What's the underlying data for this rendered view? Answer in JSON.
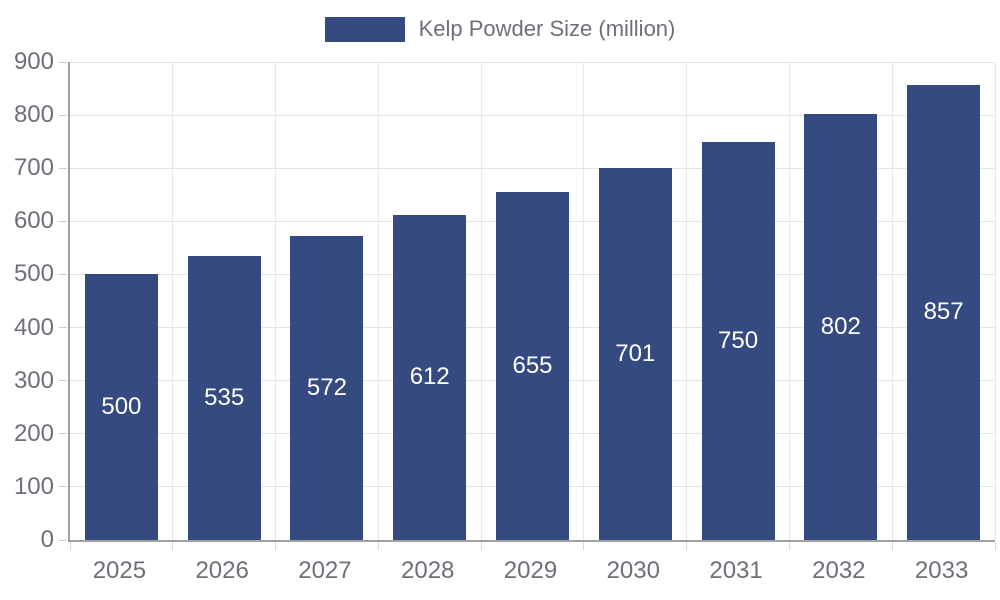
{
  "chart_data": {
    "type": "bar",
    "title": "",
    "xlabel": "",
    "ylabel": "",
    "categories": [
      "2025",
      "2026",
      "2027",
      "2028",
      "2029",
      "2030",
      "2031",
      "2032",
      "2033"
    ],
    "series": [
      {
        "name": "Kelp Powder Size (million)",
        "values": [
          500,
          535,
          572,
          612,
          655,
          701,
          750,
          802,
          857
        ]
      }
    ],
    "ylim": [
      0,
      900
    ],
    "ytick_interval": 100,
    "ytick_labels": [
      "0",
      "100",
      "200",
      "300",
      "400",
      "500",
      "600",
      "700",
      "800",
      "900"
    ],
    "grid": true,
    "legend_position": "top-center",
    "value_labels_shown": true,
    "colors": {
      "bar": "#354a80",
      "value_label": "#ffffff",
      "axis_line": "#a0a0a0",
      "gridline": "#e4e4e4",
      "tick_label": "#6e7079",
      "legend_text": "#6e7079",
      "background": "#ffffff"
    }
  }
}
